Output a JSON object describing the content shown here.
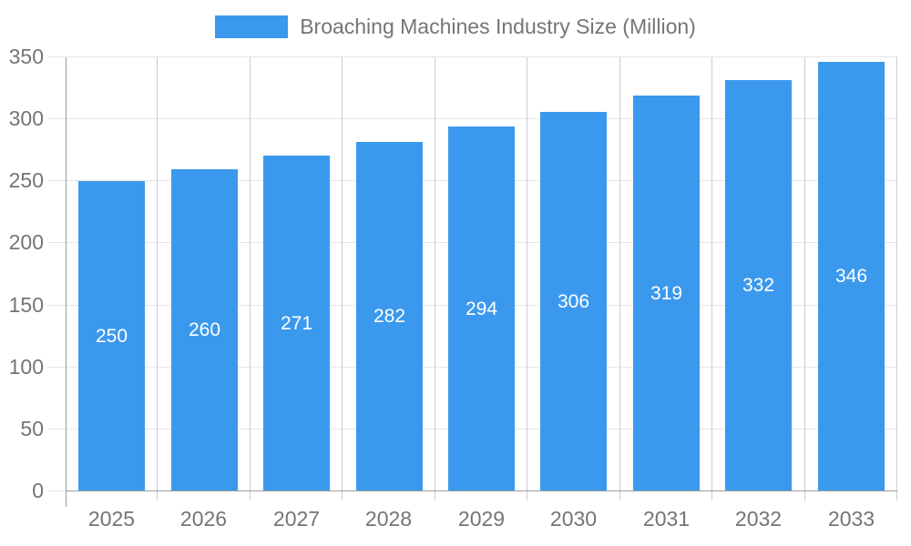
{
  "chart_data": {
    "type": "bar",
    "title": "Broaching Machines Industry Size (Million)",
    "categories": [
      "2025",
      "2026",
      "2027",
      "2028",
      "2029",
      "2030",
      "2031",
      "2032",
      "2033"
    ],
    "series": [
      {
        "name": "Broaching Machines Industry Size (Million)",
        "values": [
          250,
          260,
          271,
          282,
          294,
          306,
          319,
          332,
          346
        ]
      }
    ],
    "xlabel": "",
    "ylabel": "",
    "ylim": [
      0,
      350
    ],
    "yticks": [
      0,
      50,
      100,
      150,
      200,
      250,
      300,
      350
    ],
    "grid": true,
    "legend_position": "top",
    "value_labels": "inside-center",
    "colors": {
      "bar": "#3b99ed",
      "bar_value_text": "#ffffff",
      "axis_text": "#757575",
      "gridline": "#e6e6e6",
      "category_gridline": "#cccccc",
      "axis_line": "#9e9e9e"
    }
  }
}
